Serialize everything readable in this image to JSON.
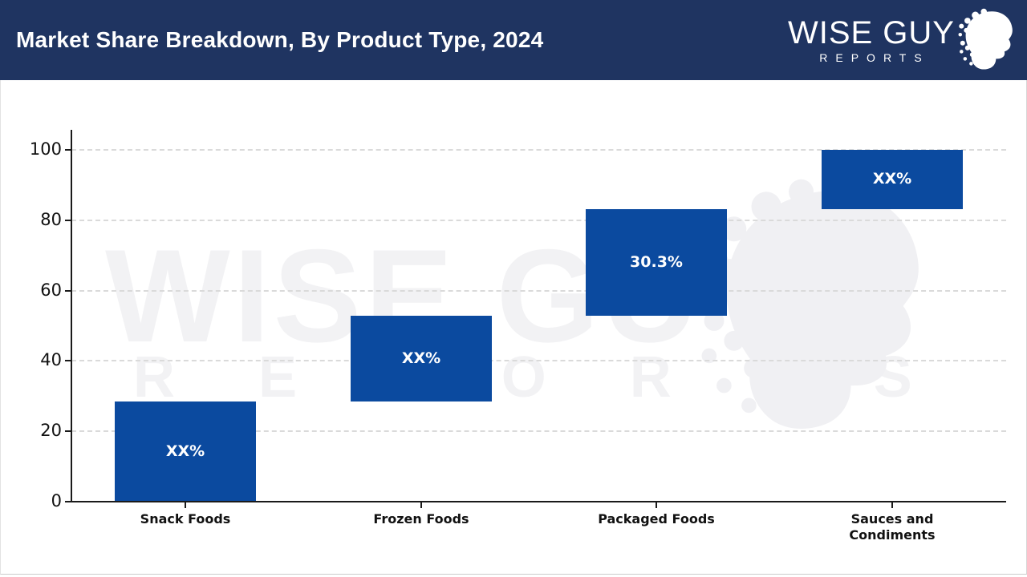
{
  "header": {
    "title": "Market Share Breakdown, By Product Type, 2024",
    "logo": {
      "brand_top": "WISE GUY",
      "brand_bottom": "REPORTS"
    }
  },
  "watermark": {
    "line1": "WISE GUY",
    "line2": "R E P O R T S"
  },
  "chart_data": {
    "type": "bar",
    "subtype": "waterfall",
    "title": "Market Share Breakdown, By Product Type, 2024",
    "categories": [
      "Snack Foods",
      "Frozen Foods",
      "Packaged Foods",
      "Sauces and Condiments"
    ],
    "segments": [
      {
        "category": "Snack Foods",
        "start": 0,
        "end": 28.4,
        "value": 28.4,
        "label": "XX%"
      },
      {
        "category": "Frozen Foods",
        "start": 28.4,
        "end": 52.8,
        "value": 24.4,
        "label": "XX%"
      },
      {
        "category": "Packaged Foods",
        "start": 52.8,
        "end": 83.1,
        "value": 30.3,
        "label": "30.3%"
      },
      {
        "category": "Sauces and Condiments",
        "start": 83.1,
        "end": 100,
        "value": 16.9,
        "label": "XX%"
      }
    ],
    "yticks": [
      0,
      20,
      40,
      60,
      80,
      100
    ],
    "ylim": [
      0,
      100
    ],
    "xlabel": "",
    "ylabel": "",
    "grid": "dashed-horizontal",
    "legend": "none",
    "bar_color": "#0b4a9f",
    "bar_label_color": "#ffffff"
  },
  "colors": {
    "header_bg": "#1f3461",
    "bar": "#0b4a9f",
    "grid": "#dadada",
    "axis": "#1a1a1a",
    "watermark": "#f2f2f4"
  }
}
